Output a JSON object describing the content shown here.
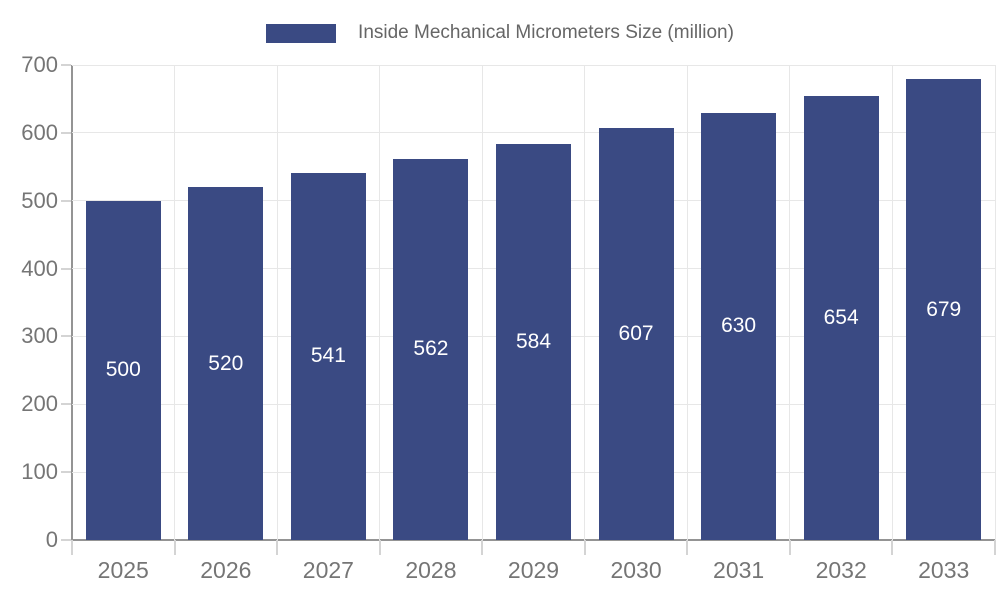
{
  "chart_data": {
    "type": "bar",
    "title": "Inside Mechanical Micrometers Size (million)",
    "categories": [
      "2025",
      "2026",
      "2027",
      "2028",
      "2029",
      "2030",
      "2031",
      "2032",
      "2033"
    ],
    "values": [
      500,
      520,
      541,
      562,
      584,
      607,
      630,
      654,
      679
    ],
    "xlabel": "",
    "ylabel": "",
    "ylim": [
      0,
      700
    ],
    "yticks": [
      0,
      100,
      200,
      300,
      400,
      500,
      600,
      700
    ],
    "grid": true,
    "legend_position": "top-center",
    "value_labels": "inside-center",
    "colors": {
      "bar": "#3a4a83",
      "value_label": "#ffffff",
      "axis_line": "#949494",
      "grid_line": "#e7e7e7",
      "tick_mark": "#d4d4d4",
      "tick_label": "#757575",
      "legend_text": "#666666",
      "background": "#ffffff"
    }
  }
}
